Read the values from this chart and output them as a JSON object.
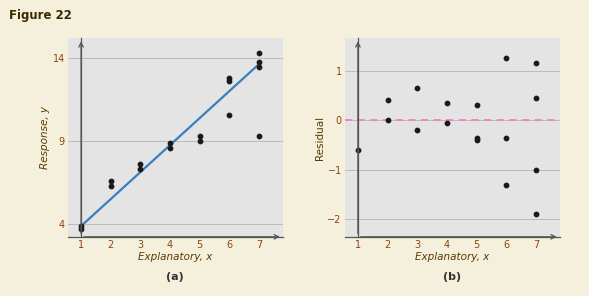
{
  "title": "Figure 22",
  "fig_bg": "#f5f0dc",
  "plot_bg": "#e4e4e4",
  "scatter_a_x": [
    1,
    1,
    2,
    2,
    3,
    3,
    4,
    4,
    5,
    5,
    6,
    6,
    6,
    7,
    7,
    7,
    7
  ],
  "scatter_a_y": [
    3.7,
    3.85,
    6.3,
    6.6,
    7.3,
    7.6,
    8.85,
    8.6,
    9.0,
    9.3,
    10.6,
    12.65,
    12.8,
    9.3,
    13.5,
    13.8,
    14.3
  ],
  "line_x": [
    1,
    7
  ],
  "line_y": [
    3.85,
    13.65
  ],
  "line_color": "#3a7ebf",
  "scatter_b_x": [
    1,
    2,
    2,
    3,
    3,
    4,
    4,
    5,
    5,
    5,
    6,
    6,
    6,
    7,
    7,
    7,
    7
  ],
  "scatter_b_y": [
    -0.6,
    0.4,
    0.0,
    0.65,
    -0.2,
    0.35,
    -0.05,
    0.3,
    -0.35,
    -0.4,
    1.25,
    -0.35,
    -1.3,
    1.15,
    0.45,
    -1.0,
    -1.9
  ],
  "dot_color": "#1a1a1a",
  "dashed_color": "#ee82c0",
  "xlabel_a": "Explanatory, x",
  "ylabel_a": "Response, y",
  "xlabel_b": "Explanatory, x",
  "ylabel_b": "Residual",
  "label_a": "(a)",
  "label_b": "(b)",
  "yticks_a": [
    4,
    9,
    14
  ],
  "ylim_a": [
    3.2,
    15.2
  ],
  "xlim_a": [
    0.55,
    7.8
  ],
  "yticks_b": [
    -2,
    -1,
    0,
    1
  ],
  "ylim_b": [
    -2.35,
    1.65
  ],
  "xlim_b": [
    0.55,
    7.8
  ],
  "xticks": [
    1,
    2,
    3,
    4,
    5,
    6,
    7
  ],
  "tick_label_color": "#8b4513",
  "label_color": "#5a3a00",
  "axis_color": "#555555",
  "grid_color": "#bbbbbb"
}
